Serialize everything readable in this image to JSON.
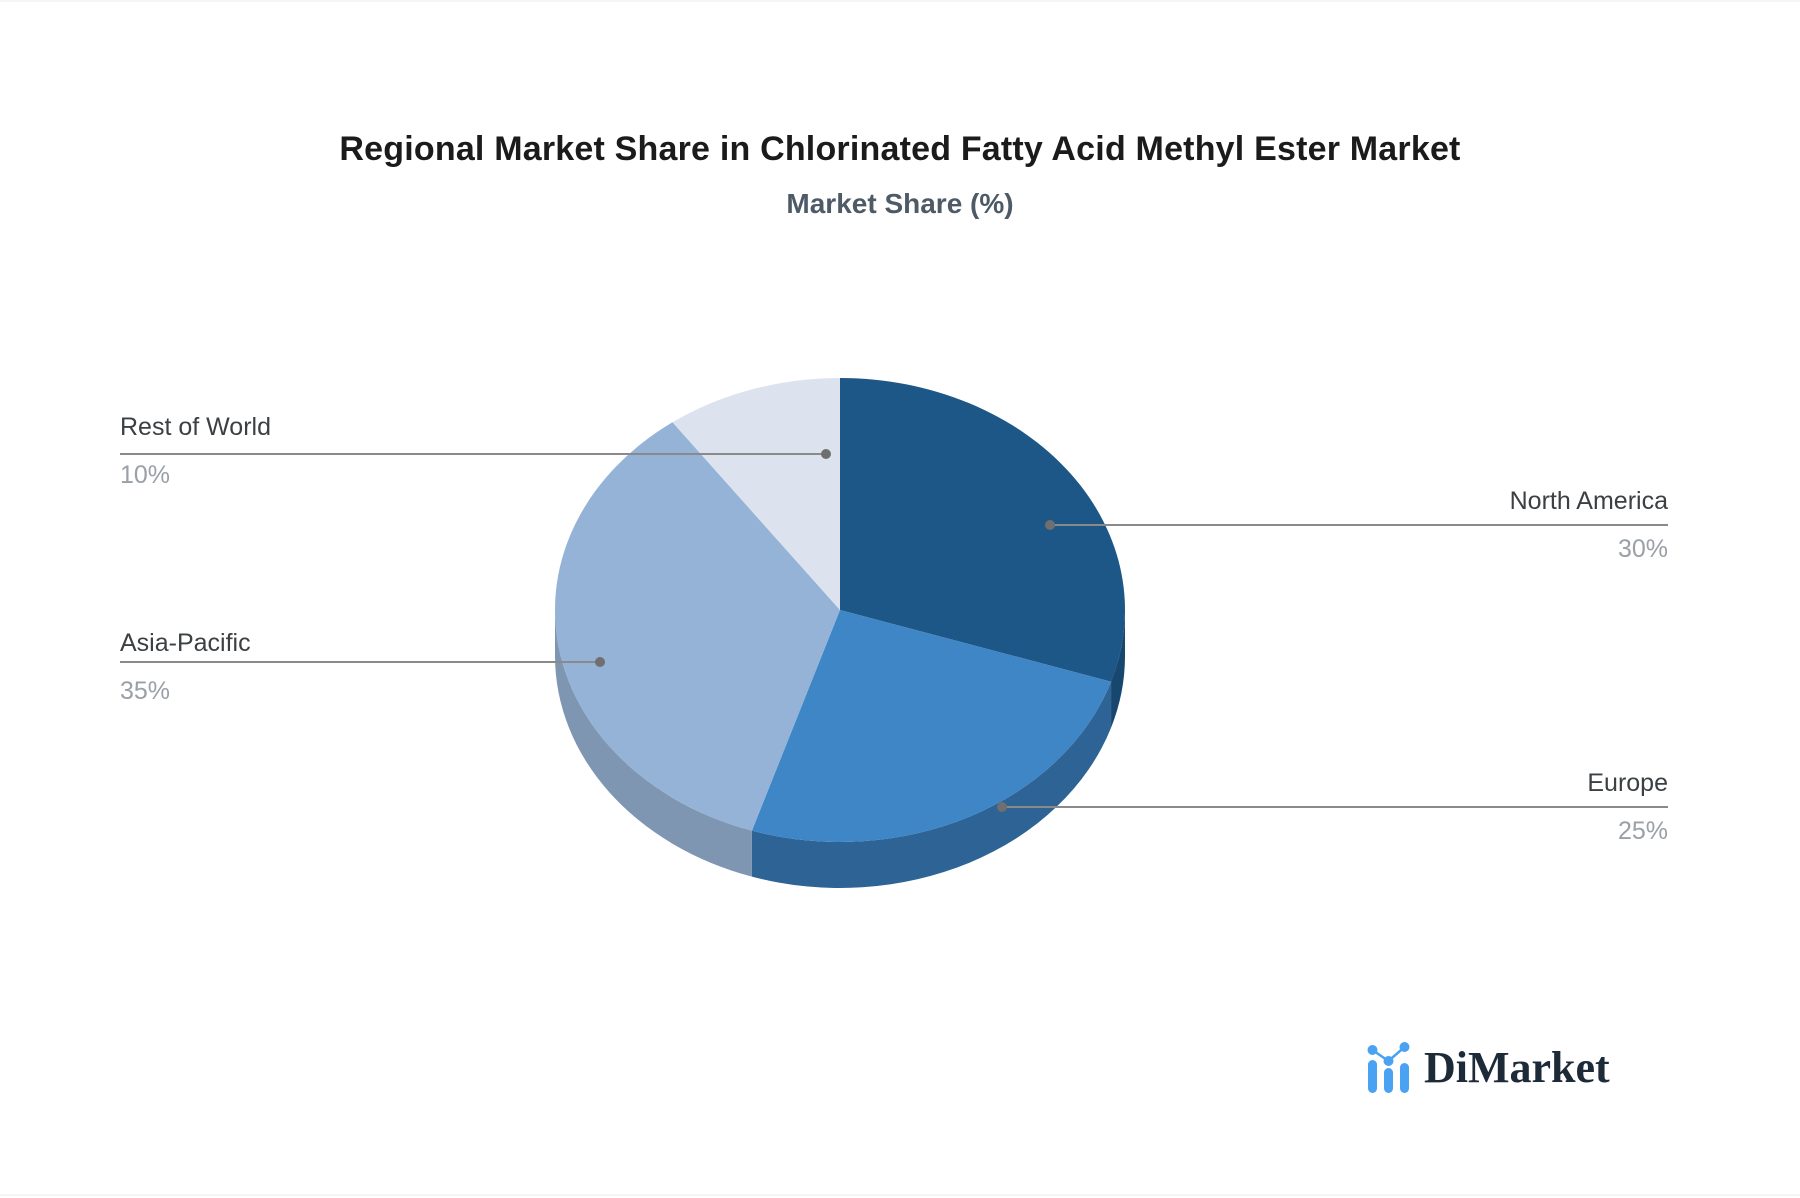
{
  "title": "Regional Market Share in Chlorinated Fatty Acid Methyl Ester Market",
  "subtitle": "Market Share (%)",
  "chart_data": {
    "type": "pie",
    "style": "3d",
    "title": "Regional Market Share in Chlorinated Fatty Acid Methyl Ester Market",
    "subtitle": "Market Share (%)",
    "unit": "%",
    "direction": "clockwise",
    "start_angle_deg": 0,
    "labels": [
      "North America",
      "Europe",
      "Asia-Pacific",
      "Rest of World"
    ],
    "values": [
      30,
      25,
      35,
      10
    ],
    "percent_labels": [
      "30%",
      "25%",
      "35%",
      "10%"
    ],
    "colors": [
      "#1d5788",
      "#3e86c6",
      "#94b3d7",
      "#dce3ee"
    ],
    "side_colors": [
      "#17466f",
      "#2e6396",
      "#7e96b2",
      "#c3ccd9"
    ],
    "leader_line_color": "#8a8a8a",
    "leader_dot_color": "#6f6f6f",
    "legend": "leader-labels"
  },
  "brand": {
    "name": "DiMarket",
    "icon": "bar-line-chart-logo",
    "accent_color": "#4aa3f2",
    "text_color": "#1d2a38"
  }
}
